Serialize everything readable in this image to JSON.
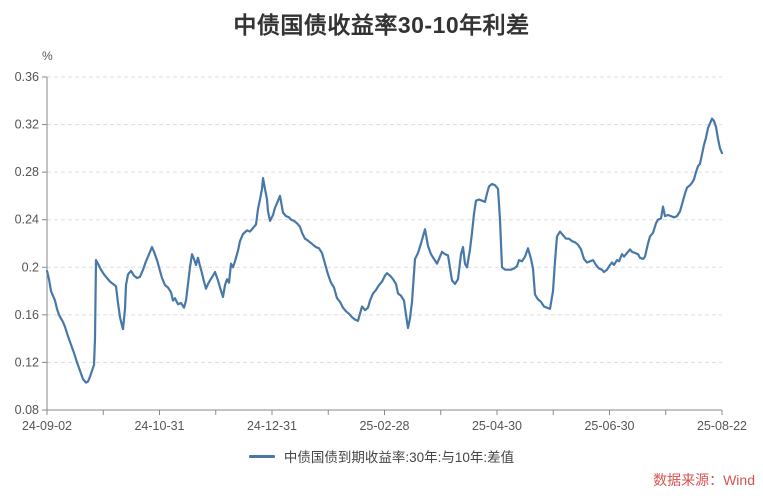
{
  "title": "中债国债收益率30-10年利差",
  "source": "数据来源：Wind",
  "legend": {
    "label": "中债国债到期收益率:30年:与10年:差值"
  },
  "colors": {
    "line": "#4878a8",
    "title": "#333333",
    "axis": "#888888",
    "grid": "#dddddd",
    "tick_label": "#555555",
    "source": "#d9534f"
  },
  "chart_data": {
    "type": "line",
    "title": "中债国债收益率30-10年利差",
    "unit_label": "%",
    "xlabel": "",
    "ylabel": "%",
    "ylim": [
      0.08,
      0.36
    ],
    "grid": "horizontal-dashed",
    "legend_position": "bottom-center",
    "y_tick_labels": [
      "0.36",
      "0.32",
      "0.28",
      "0.24",
      "0.2",
      "0.16",
      "0.12",
      "0.08"
    ],
    "x_tick_labels": [
      "24-09-02",
      "24-10-31",
      "24-12-31",
      "25-02-28",
      "25-04-30",
      "25-06-30",
      "25-08-22"
    ],
    "series": [
      {
        "name": "中债国债到期收益率:30年:与10年:差值",
        "color": "#4878a8",
        "points": [
          [
            0,
            0.197
          ],
          [
            2,
            0.19
          ],
          [
            4,
            0.18
          ],
          [
            6,
            0.176
          ],
          [
            8,
            0.172
          ],
          [
            10,
            0.165
          ],
          [
            12,
            0.16
          ],
          [
            14,
            0.157
          ],
          [
            16,
            0.154
          ],
          [
            18,
            0.15
          ],
          [
            21,
            0.142
          ],
          [
            24,
            0.135
          ],
          [
            27,
            0.128
          ],
          [
            30,
            0.12
          ],
          [
            33,
            0.113
          ],
          [
            36,
            0.106
          ],
          [
            39,
            0.103
          ],
          [
            41,
            0.104
          ],
          [
            43,
            0.108
          ],
          [
            45,
            0.113
          ],
          [
            47,
            0.118
          ],
          [
            48,
            0.14
          ],
          [
            49,
            0.206
          ],
          [
            51,
            0.203
          ],
          [
            54,
            0.198
          ],
          [
            57,
            0.194
          ],
          [
            60,
            0.191
          ],
          [
            63,
            0.188
          ],
          [
            66,
            0.186
          ],
          [
            69,
            0.184
          ],
          [
            71,
            0.17
          ],
          [
            73,
            0.158
          ],
          [
            75,
            0.151
          ],
          [
            76,
            0.148
          ],
          [
            78,
            0.165
          ],
          [
            79,
            0.185
          ],
          [
            81,
            0.194
          ],
          [
            84,
            0.197
          ],
          [
            87,
            0.193
          ],
          [
            90,
            0.191
          ],
          [
            93,
            0.192
          ],
          [
            96,
            0.198
          ],
          [
            99,
            0.205
          ],
          [
            102,
            0.211
          ],
          [
            105,
            0.217
          ],
          [
            107,
            0.213
          ],
          [
            110,
            0.206
          ],
          [
            112,
            0.2
          ],
          [
            115,
            0.191
          ],
          [
            118,
            0.185
          ],
          [
            121,
            0.183
          ],
          [
            124,
            0.179
          ],
          [
            126,
            0.172
          ],
          [
            128,
            0.174
          ],
          [
            131,
            0.169
          ],
          [
            134,
            0.17
          ],
          [
            137,
            0.166
          ],
          [
            139,
            0.172
          ],
          [
            141,
            0.186
          ],
          [
            143,
            0.2
          ],
          [
            145,
            0.211
          ],
          [
            147,
            0.207
          ],
          [
            149,
            0.202
          ],
          [
            151,
            0.208
          ],
          [
            153,
            0.201
          ],
          [
            155,
            0.195
          ],
          [
            157,
            0.188
          ],
          [
            159,
            0.182
          ],
          [
            161,
            0.186
          ],
          [
            163,
            0.189
          ],
          [
            166,
            0.193
          ],
          [
            168,
            0.196
          ],
          [
            171,
            0.189
          ],
          [
            173,
            0.183
          ],
          [
            176,
            0.175
          ],
          [
            178,
            0.185
          ],
          [
            180,
            0.19
          ],
          [
            182,
            0.187
          ],
          [
            184,
            0.203
          ],
          [
            186,
            0.2
          ],
          [
            188,
            0.205
          ],
          [
            191,
            0.214
          ],
          [
            193,
            0.222
          ],
          [
            196,
            0.228
          ],
          [
            200,
            0.231
          ],
          [
            203,
            0.23
          ],
          [
            206,
            0.233
          ],
          [
            209,
            0.236
          ],
          [
            211,
            0.249
          ],
          [
            213,
            0.257
          ],
          [
            215,
            0.266
          ],
          [
            216,
            0.275
          ],
          [
            218,
            0.266
          ],
          [
            220,
            0.257
          ],
          [
            221,
            0.247
          ],
          [
            223,
            0.239
          ],
          [
            226,
            0.244
          ],
          [
            228,
            0.25
          ],
          [
            231,
            0.256
          ],
          [
            233,
            0.26
          ],
          [
            236,
            0.246
          ],
          [
            239,
            0.243
          ],
          [
            242,
            0.242
          ],
          [
            244,
            0.24
          ],
          [
            247,
            0.239
          ],
          [
            250,
            0.237
          ],
          [
            253,
            0.234
          ],
          [
            255,
            0.229
          ],
          [
            258,
            0.224
          ],
          [
            260,
            0.223
          ],
          [
            263,
            0.221
          ],
          [
            266,
            0.219
          ],
          [
            269,
            0.217
          ],
          [
            272,
            0.216
          ],
          [
            275,
            0.212
          ],
          [
            278,
            0.203
          ],
          [
            281,
            0.194
          ],
          [
            284,
            0.187
          ],
          [
            287,
            0.183
          ],
          [
            290,
            0.174
          ],
          [
            293,
            0.171
          ],
          [
            296,
            0.166
          ],
          [
            299,
            0.163
          ],
          [
            302,
            0.161
          ],
          [
            305,
            0.158
          ],
          [
            308,
            0.156
          ],
          [
            311,
            0.155
          ],
          [
            313,
            0.161
          ],
          [
            315,
            0.167
          ],
          [
            318,
            0.164
          ],
          [
            321,
            0.166
          ],
          [
            323,
            0.172
          ],
          [
            326,
            0.178
          ],
          [
            329,
            0.181
          ],
          [
            332,
            0.185
          ],
          [
            335,
            0.188
          ],
          [
            338,
            0.193
          ],
          [
            340,
            0.195
          ],
          [
            343,
            0.193
          ],
          [
            346,
            0.19
          ],
          [
            349,
            0.186
          ],
          [
            351,
            0.178
          ],
          [
            354,
            0.176
          ],
          [
            357,
            0.172
          ],
          [
            359,
            0.16
          ],
          [
            361,
            0.149
          ],
          [
            363,
            0.157
          ],
          [
            365,
            0.171
          ],
          [
            368,
            0.207
          ],
          [
            371,
            0.212
          ],
          [
            374,
            0.22
          ],
          [
            378,
            0.232
          ],
          [
            381,
            0.218
          ],
          [
            384,
            0.211
          ],
          [
            387,
            0.207
          ],
          [
            390,
            0.203
          ],
          [
            393,
            0.209
          ],
          [
            395,
            0.213
          ],
          [
            398,
            0.211
          ],
          [
            401,
            0.21
          ],
          [
            405,
            0.189
          ],
          [
            408,
            0.186
          ],
          [
            411,
            0.19
          ],
          [
            414,
            0.211
          ],
          [
            416,
            0.217
          ],
          [
            418,
            0.203
          ],
          [
            420,
            0.2
          ],
          [
            423,
            0.215
          ],
          [
            425,
            0.229
          ],
          [
            427,
            0.245
          ],
          [
            429,
            0.256
          ],
          [
            432,
            0.257
          ],
          [
            435,
            0.256
          ],
          [
            438,
            0.255
          ],
          [
            440,
            0.262
          ],
          [
            442,
            0.268
          ],
          [
            445,
            0.27
          ],
          [
            448,
            0.269
          ],
          [
            451,
            0.266
          ],
          [
            453,
            0.24
          ],
          [
            455,
            0.2
          ],
          [
            458,
            0.198
          ],
          [
            461,
            0.198
          ],
          [
            464,
            0.198
          ],
          [
            467,
            0.199
          ],
          [
            470,
            0.201
          ],
          [
            472,
            0.206
          ],
          [
            475,
            0.205
          ],
          [
            478,
            0.209
          ],
          [
            481,
            0.216
          ],
          [
            484,
            0.207
          ],
          [
            486,
            0.199
          ],
          [
            488,
            0.177
          ],
          [
            491,
            0.173
          ],
          [
            494,
            0.171
          ],
          [
            497,
            0.167
          ],
          [
            500,
            0.166
          ],
          [
            503,
            0.165
          ],
          [
            506,
            0.18
          ],
          [
            508,
            0.205
          ],
          [
            510,
            0.226
          ],
          [
            513,
            0.23
          ],
          [
            516,
            0.227
          ],
          [
            519,
            0.224
          ],
          [
            522,
            0.224
          ],
          [
            525,
            0.222
          ],
          [
            528,
            0.221
          ],
          [
            531,
            0.219
          ],
          [
            534,
            0.215
          ],
          [
            537,
            0.207
          ],
          [
            540,
            0.204
          ],
          [
            543,
            0.205
          ],
          [
            546,
            0.206
          ],
          [
            549,
            0.202
          ],
          [
            552,
            0.199
          ],
          [
            555,
            0.198
          ],
          [
            557,
            0.196
          ],
          [
            560,
            0.198
          ],
          [
            563,
            0.202
          ],
          [
            565,
            0.204
          ],
          [
            567,
            0.202
          ],
          [
            570,
            0.206
          ],
          [
            572,
            0.205
          ],
          [
            575,
            0.211
          ],
          [
            577,
            0.209
          ],
          [
            580,
            0.212
          ],
          [
            583,
            0.215
          ],
          [
            585,
            0.213
          ],
          [
            588,
            0.212
          ],
          [
            591,
            0.211
          ],
          [
            593,
            0.208
          ],
          [
            596,
            0.207
          ],
          [
            598,
            0.209
          ],
          [
            601,
            0.22
          ],
          [
            603,
            0.226
          ],
          [
            606,
            0.229
          ],
          [
            609,
            0.237
          ],
          [
            611,
            0.24
          ],
          [
            614,
            0.241
          ],
          [
            616,
            0.251
          ],
          [
            618,
            0.243
          ],
          [
            621,
            0.244
          ],
          [
            624,
            0.243
          ],
          [
            627,
            0.242
          ],
          [
            630,
            0.243
          ],
          [
            633,
            0.247
          ],
          [
            636,
            0.256
          ],
          [
            638,
            0.262
          ],
          [
            640,
            0.267
          ],
          [
            643,
            0.269
          ],
          [
            645,
            0.271
          ],
          [
            647,
            0.274
          ],
          [
            649,
            0.28
          ],
          [
            651,
            0.285
          ],
          [
            653,
            0.287
          ],
          [
            655,
            0.295
          ],
          [
            657,
            0.303
          ],
          [
            659,
            0.309
          ],
          [
            661,
            0.317
          ],
          [
            663,
            0.321
          ],
          [
            665,
            0.325
          ],
          [
            667,
            0.323
          ],
          [
            669,
            0.318
          ],
          [
            671,
            0.308
          ],
          [
            673,
            0.3
          ],
          [
            675,
            0.296
          ]
        ]
      }
    ]
  }
}
